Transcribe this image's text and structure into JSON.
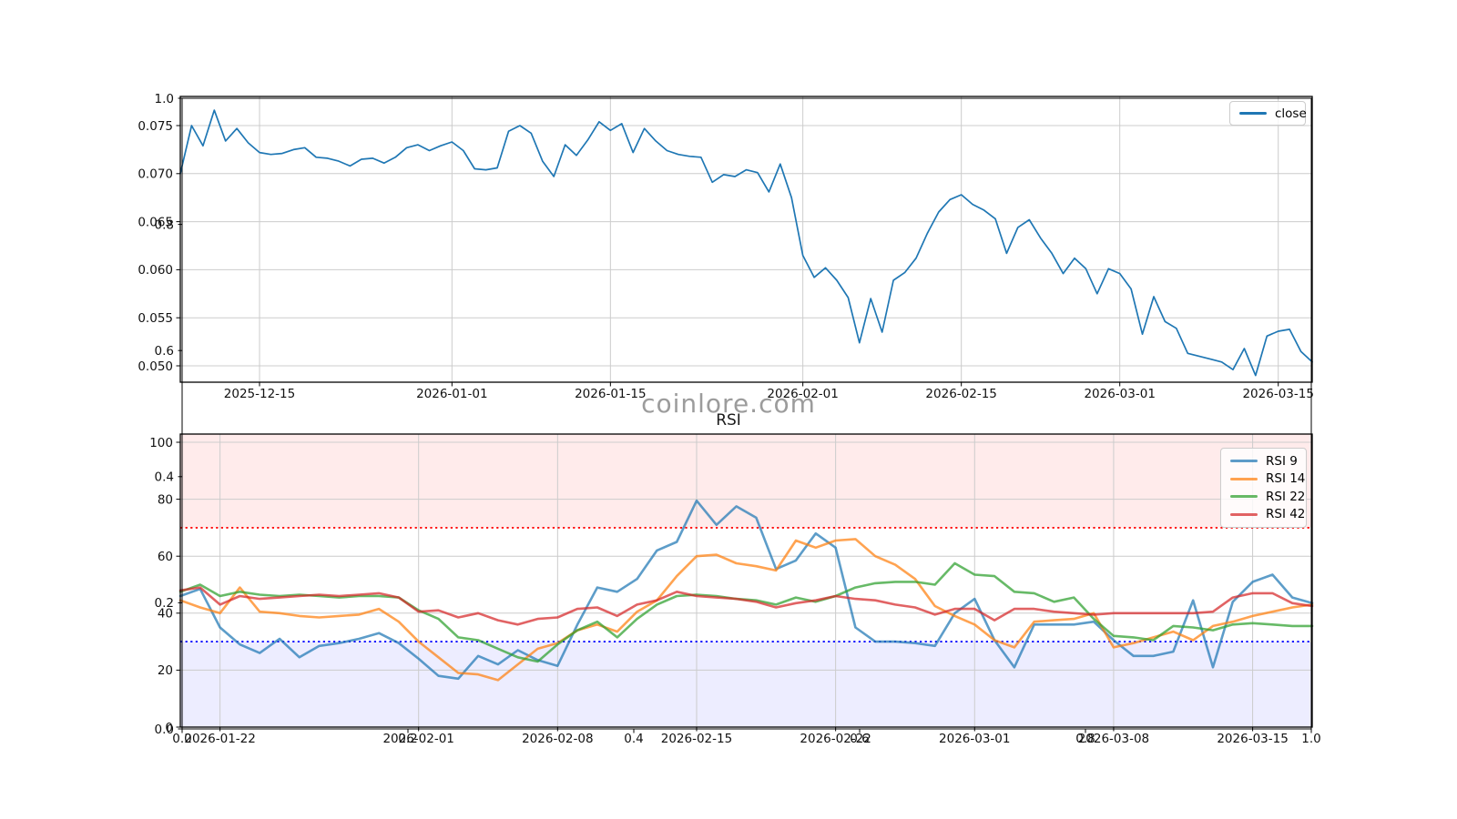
{
  "watermark": "coinlore.com",
  "figure_axis": {
    "x_tick_labels": [
      "0.0",
      "0.2",
      "0.4",
      "0.6",
      "0.8",
      "1.0"
    ],
    "y_tick_labels": [
      "1.0",
      "0.8",
      "0.6",
      "0.4",
      "0.2",
      "0.0"
    ]
  },
  "chart_data": [
    {
      "type": "line",
      "name": "price",
      "title": "",
      "grid": true,
      "legend_position": "upper right",
      "ylim": [
        0.0483,
        0.078
      ],
      "y_ticks": [
        0.075,
        0.07,
        0.065,
        0.06,
        0.055,
        0.05
      ],
      "y_tick_labels": [
        "0.075",
        "0.070",
        "0.065",
        "0.060",
        "0.055",
        "0.050"
      ],
      "x_tick_labels": [
        "2025-12-15",
        "2026-01-01",
        "2026-01-15",
        "2026-02-01",
        "2026-02-15",
        "2026-03-01",
        "2026-03-15"
      ],
      "x": [
        "2025-12-08",
        "2025-12-09",
        "2025-12-10",
        "2025-12-11",
        "2025-12-12",
        "2025-12-13",
        "2025-12-14",
        "2025-12-15",
        "2025-12-16",
        "2025-12-17",
        "2025-12-18",
        "2025-12-19",
        "2025-12-20",
        "2025-12-21",
        "2025-12-22",
        "2025-12-23",
        "2025-12-24",
        "2025-12-25",
        "2025-12-26",
        "2025-12-27",
        "2025-12-28",
        "2025-12-29",
        "2025-12-30",
        "2025-12-31",
        "2026-01-01",
        "2026-01-02",
        "2026-01-03",
        "2026-01-04",
        "2026-01-05",
        "2026-01-06",
        "2026-01-07",
        "2026-01-08",
        "2026-01-09",
        "2026-01-10",
        "2026-01-11",
        "2026-01-12",
        "2026-01-13",
        "2026-01-14",
        "2026-01-15",
        "2026-01-16",
        "2026-01-17",
        "2026-01-18",
        "2026-01-19",
        "2026-01-20",
        "2026-01-21",
        "2026-01-22",
        "2026-01-23",
        "2026-01-24",
        "2026-01-25",
        "2026-01-26",
        "2026-01-27",
        "2026-01-28",
        "2026-01-29",
        "2026-01-30",
        "2026-01-31",
        "2026-02-01",
        "2026-02-02",
        "2026-02-03",
        "2026-02-04",
        "2026-02-05",
        "2026-02-06",
        "2026-02-07",
        "2026-02-08",
        "2026-02-09",
        "2026-02-10",
        "2026-02-11",
        "2026-02-12",
        "2026-02-13",
        "2026-02-14",
        "2026-02-15",
        "2026-02-16",
        "2026-02-17",
        "2026-02-18",
        "2026-02-19",
        "2026-02-20",
        "2026-02-21",
        "2026-02-22",
        "2026-02-23",
        "2026-02-24",
        "2026-02-25",
        "2026-02-26",
        "2026-02-27",
        "2026-02-28",
        "2026-03-01",
        "2026-03-02",
        "2026-03-03",
        "2026-03-04",
        "2026-03-05",
        "2026-03-06",
        "2026-03-07",
        "2026-03-08",
        "2026-03-09",
        "2026-03-10",
        "2026-03-11",
        "2026-03-12",
        "2026-03-13",
        "2026-03-14",
        "2026-03-15",
        "2026-03-16",
        "2026-03-17",
        "2026-03-18"
      ],
      "series": [
        {
          "name": "close",
          "color": "#1f77b4",
          "values": [
            0.07,
            0.075,
            0.0729,
            0.0766,
            0.0734,
            0.0747,
            0.0732,
            0.0722,
            0.072,
            0.0721,
            0.0725,
            0.0727,
            0.0717,
            0.0716,
            0.0713,
            0.0708,
            0.0715,
            0.0716,
            0.0711,
            0.0717,
            0.0727,
            0.073,
            0.0724,
            0.0729,
            0.0733,
            0.0724,
            0.0705,
            0.0704,
            0.0706,
            0.0744,
            0.075,
            0.0742,
            0.0713,
            0.0697,
            0.073,
            0.0719,
            0.0735,
            0.0754,
            0.0745,
            0.0752,
            0.0722,
            0.0747,
            0.0734,
            0.0724,
            0.072,
            0.0718,
            0.0717,
            0.0691,
            0.0699,
            0.0697,
            0.0704,
            0.0701,
            0.0681,
            0.071,
            0.0675,
            0.0615,
            0.0592,
            0.0602,
            0.0589,
            0.0571,
            0.0524,
            0.057,
            0.0535,
            0.0589,
            0.0597,
            0.0612,
            0.0638,
            0.066,
            0.0673,
            0.0678,
            0.0668,
            0.0662,
            0.0653,
            0.0617,
            0.0644,
            0.0652,
            0.0633,
            0.0617,
            0.0596,
            0.0612,
            0.0601,
            0.0575,
            0.0601,
            0.0596,
            0.058,
            0.0533,
            0.0572,
            0.0546,
            0.0539,
            0.0513,
            0.051,
            0.0507,
            0.0504,
            0.0496,
            0.0518,
            0.049,
            0.0531,
            0.0536,
            0.0538,
            0.0515,
            0.0504
          ]
        }
      ]
    },
    {
      "type": "line",
      "name": "rsi",
      "title": "RSI",
      "grid": true,
      "legend_position": "upper right",
      "ylim": [
        0,
        103
      ],
      "y_ticks": [
        100,
        80,
        60,
        40,
        20,
        0
      ],
      "y_tick_labels": [
        "100",
        "80",
        "60",
        "40",
        "20",
        "0"
      ],
      "x_tick_labels": [
        "2026-01-22",
        "2026-02-01",
        "2026-02-08",
        "2026-02-15",
        "2026-02-22",
        "2026-03-01",
        "2026-03-08",
        "2026-03-15"
      ],
      "overbought_level": 70,
      "oversold_level": 30,
      "overbought_line_color": "#ff0000",
      "oversold_line_color": "#0000ff",
      "overbought_band_color": "rgba(255,0,0,0.08)",
      "oversold_band_color": "rgba(0,0,255,0.07)",
      "x": [
        "2026-01-20",
        "2026-01-21",
        "2026-01-22",
        "2026-01-23",
        "2026-01-24",
        "2026-01-25",
        "2026-01-26",
        "2026-01-27",
        "2026-01-28",
        "2026-01-29",
        "2026-01-30",
        "2026-01-31",
        "2026-02-01",
        "2026-02-02",
        "2026-02-03",
        "2026-02-04",
        "2026-02-05",
        "2026-02-06",
        "2026-02-07",
        "2026-02-08",
        "2026-02-09",
        "2026-02-10",
        "2026-02-11",
        "2026-02-12",
        "2026-02-13",
        "2026-02-14",
        "2026-02-15",
        "2026-02-16",
        "2026-02-17",
        "2026-02-18",
        "2026-02-19",
        "2026-02-20",
        "2026-02-21",
        "2026-02-22",
        "2026-02-23",
        "2026-02-24",
        "2026-02-25",
        "2026-02-26",
        "2026-02-27",
        "2026-02-28",
        "2026-03-01",
        "2026-03-02",
        "2026-03-03",
        "2026-03-04",
        "2026-03-05",
        "2026-03-06",
        "2026-03-07",
        "2026-03-08",
        "2026-03-09",
        "2026-03-10",
        "2026-03-11",
        "2026-03-12",
        "2026-03-13",
        "2026-03-14",
        "2026-03-15",
        "2026-03-16",
        "2026-03-17",
        "2026-03-18"
      ],
      "series": [
        {
          "name": "RSI 9",
          "color": "#1f77b4",
          "values": [
            46,
            48.5,
            35,
            29,
            26,
            31,
            24.5,
            28.5,
            29.5,
            31,
            33,
            29.5,
            24,
            18,
            17,
            25,
            22,
            27,
            23.5,
            21.5,
            36,
            49,
            47.5,
            52,
            62,
            65,
            79.5,
            71,
            77.5,
            73.5,
            55.5,
            58.5,
            68,
            63,
            35,
            30,
            30,
            29.5,
            28.5,
            40,
            45,
            30.5,
            21,
            36,
            36,
            36,
            37,
            30.5,
            25,
            25,
            26.5,
            44.5,
            21,
            44,
            51,
            53.5,
            45.5,
            43.5
          ]
        },
        {
          "name": "RSI 14",
          "color": "#ff7f0e",
          "values": [
            44.5,
            42,
            40,
            49,
            40.5,
            40,
            39,
            38.5,
            39,
            39.5,
            41.5,
            37,
            30,
            24.5,
            19,
            18.5,
            16.5,
            22,
            27.5,
            29.5,
            34,
            36,
            33.5,
            40.5,
            44.5,
            53,
            60,
            60.5,
            57.5,
            56.5,
            55,
            65.5,
            63,
            65.5,
            66,
            60,
            57,
            52,
            42.5,
            39,
            36,
            30.5,
            28,
            37,
            37.5,
            38,
            40,
            28,
            29.5,
            31.5,
            33.5,
            30.5,
            35.5,
            37,
            39,
            40.5,
            42,
            43
          ]
        },
        {
          "name": "RSI 22",
          "color": "#2ca02c",
          "values": [
            47.5,
            50,
            46,
            47.5,
            46.5,
            46,
            46.5,
            46,
            45.5,
            46,
            46,
            45.5,
            41,
            38,
            31.5,
            30.5,
            27.5,
            24.5,
            23,
            29,
            34,
            37,
            31.5,
            38,
            43,
            46,
            46.5,
            46,
            45,
            44.5,
            43,
            45.5,
            44,
            46,
            49,
            50.5,
            51,
            51,
            50,
            57.5,
            53.5,
            53,
            47.5,
            47,
            44,
            45.5,
            38,
            32,
            31.5,
            30.5,
            35.5,
            35,
            34,
            36,
            36.5,
            36,
            35.5,
            35.5
          ]
        },
        {
          "name": "RSI 42",
          "color": "#d62728",
          "values": [
            48,
            49,
            43,
            46,
            45,
            45.5,
            46,
            46.5,
            46,
            46.5,
            47,
            45.5,
            40.5,
            41,
            38.5,
            40,
            37.5,
            36,
            38,
            38.5,
            41.5,
            42,
            39,
            43,
            44.5,
            47.5,
            46,
            45.5,
            45,
            44,
            42,
            43.5,
            44.5,
            46,
            45,
            44.5,
            43,
            42,
            39.5,
            41.5,
            41.5,
            37.5,
            41.5,
            41.5,
            40.5,
            40,
            39.5,
            40,
            40,
            40,
            40,
            40,
            40.5,
            45.5,
            47,
            47,
            43.5,
            42.5
          ]
        }
      ]
    }
  ]
}
